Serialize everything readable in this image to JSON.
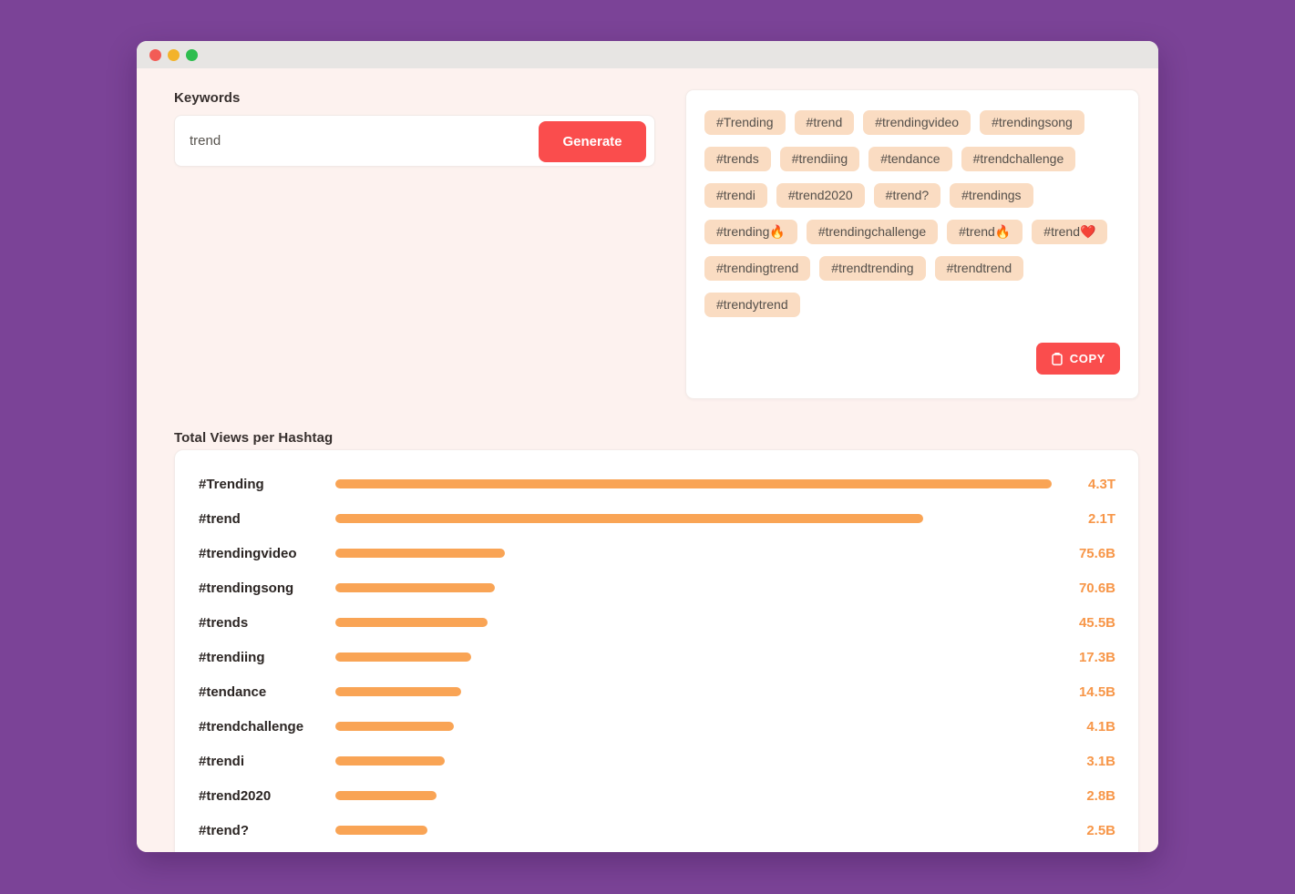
{
  "window": {
    "controls": [
      "close",
      "minimize",
      "maximize"
    ]
  },
  "keywords": {
    "label": "Keywords",
    "value": "trend",
    "generate_label": "Generate"
  },
  "hashtags": {
    "chips": [
      "#Trending",
      "#trend",
      "#trendingvideo",
      "#trendingsong",
      "#trends",
      "#trendiing",
      "#tendance",
      "#trendchallenge",
      "#trendi",
      "#trend2020",
      "#trend?",
      "#trendings",
      "#trending🔥",
      "#trendingchallenge",
      "#trend🔥",
      "#trend❤️",
      "#trendingtrend",
      "#trendtrending",
      "#trendtrend",
      "#trendytrend"
    ],
    "copy_label": "COPY"
  },
  "chart_data": {
    "type": "bar",
    "orientation": "horizontal",
    "title": "Total Views per Hashtag",
    "categories": [
      "#Trending",
      "#trend",
      "#trendingvideo",
      "#trendingsong",
      "#trends",
      "#trendiing",
      "#tendance",
      "#trendchallenge",
      "#trendi",
      "#trend2020",
      "#trend?"
    ],
    "value_labels": [
      "4.3T",
      "2.1T",
      "75.6B",
      "70.6B",
      "45.5B",
      "17.3B",
      "14.5B",
      "4.1B",
      "3.1B",
      "2.8B",
      "2.5B"
    ],
    "values_views": [
      4300000000000,
      2100000000000,
      75600000000,
      70600000000,
      45500000000,
      17300000000,
      14500000000,
      4100000000,
      3100000000,
      2800000000,
      2500000000
    ],
    "bar_pct": [
      100,
      82,
      23.7,
      22.3,
      21.3,
      18.9,
      17.6,
      16.5,
      15.3,
      14.1,
      12.9
    ],
    "grid": false,
    "legend": false,
    "bar_color": "#f9a455",
    "value_color": "#f79648"
  },
  "colors": {
    "page_bg": "#7b4397",
    "window_bg": "#fdf2ef",
    "titlebar_bg": "#e7e5e3",
    "accent_red": "#fa4d4d",
    "chip_bg": "#fadcc2",
    "chip_text": "#544f4a",
    "bar_orange": "#f9a455",
    "value_orange": "#f79648",
    "text_dark": "#2b2523"
  }
}
